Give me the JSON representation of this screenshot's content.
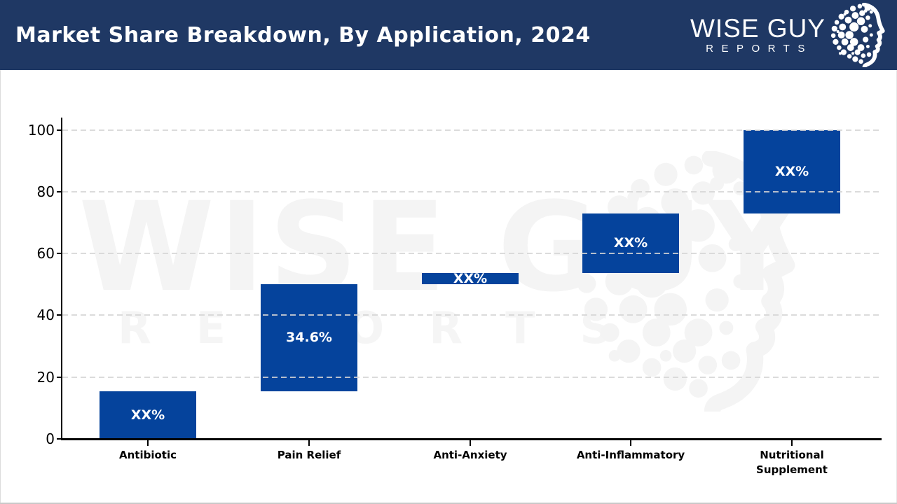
{
  "header": {
    "title": "Market Share Breakdown, By Application, 2024",
    "bg_color": "#1f3864",
    "logo": {
      "brand": "WISE GUY",
      "sub": "REPORTS",
      "head_icon": "dotted-face-profile"
    }
  },
  "watermark": {
    "brand": "WISE GUY",
    "sub": "REPORTS"
  },
  "chart_data": {
    "type": "bar",
    "subtype": "waterfall",
    "title": "Market Share Breakdown, By Application, 2024",
    "categories": [
      "Antibiotic",
      "Pain Relief",
      "Anti-Anxiety",
      "Anti-Inflammatory",
      "Nutritional Supplement"
    ],
    "segments": [
      {
        "category": "Antibiotic",
        "start": 0,
        "end": 15.4,
        "label": "XX%"
      },
      {
        "category": "Pain Relief",
        "start": 15.4,
        "end": 50.0,
        "label": "34.6%"
      },
      {
        "category": "Anti-Anxiety",
        "start": 50.0,
        "end": 53.6,
        "label": "XX%"
      },
      {
        "category": "Anti-Inflammatory",
        "start": 53.6,
        "end": 72.9,
        "label": "XX%"
      },
      {
        "category": "Nutritional Supplement",
        "start": 72.9,
        "end": 100,
        "label": "XX%"
      }
    ],
    "y_ticks": [
      0,
      20,
      40,
      60,
      80,
      100
    ],
    "ylim": [
      0,
      104
    ],
    "xlabel": "",
    "ylabel": "",
    "grid": true,
    "grid_style": "dashed",
    "legend": false,
    "bar_color": "#05439c",
    "bar_label_color": "#ffffff",
    "axis_color": "#000000"
  }
}
